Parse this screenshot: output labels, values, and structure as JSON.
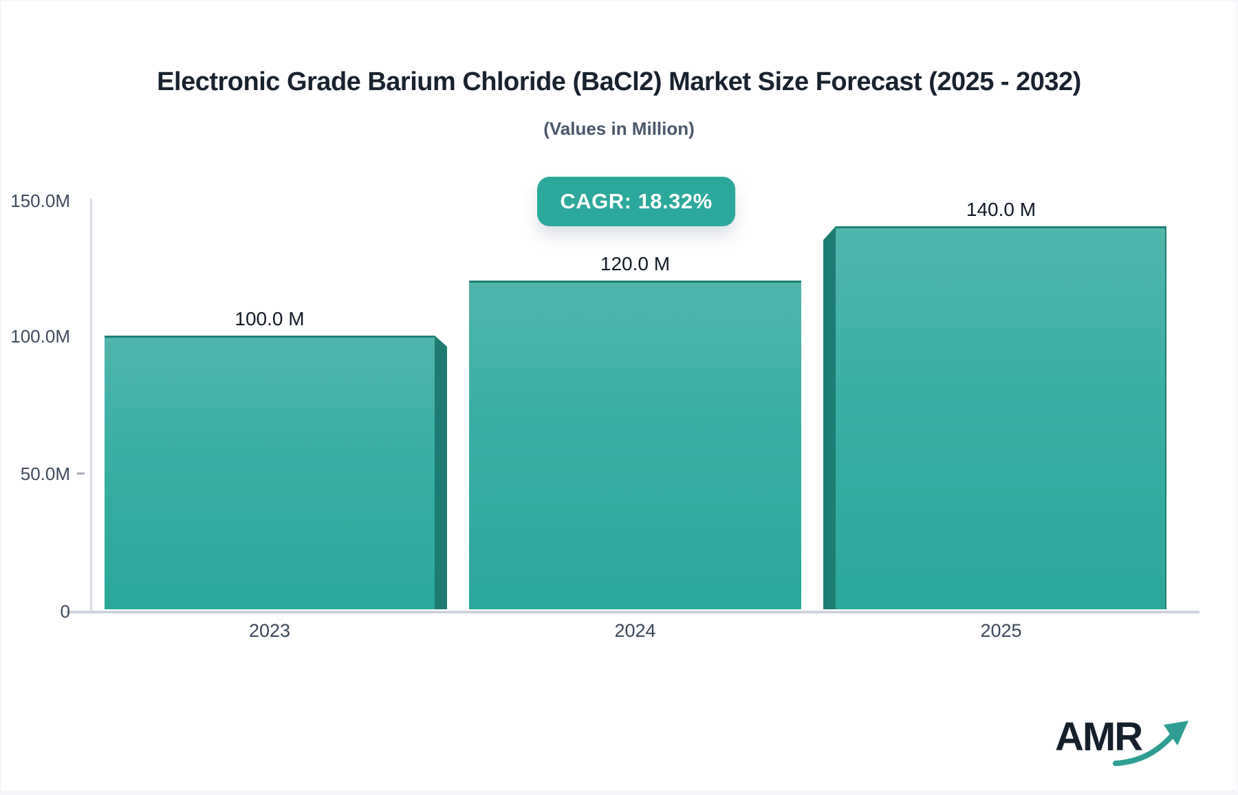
{
  "header": {
    "title": "Electronic Grade Barium Chloride (BaCl2) Market Size Forecast (2025 - 2032)",
    "subtitle": "(Values in Million)"
  },
  "cagr_badge": {
    "label": "CAGR: 18.32%",
    "color": "#2ca89c"
  },
  "chart_data": {
    "type": "bar",
    "title": "Electronic Grade Barium Chloride (BaCl2) Market Size Forecast (2025 - 2032)",
    "subtitle": "(Values in Million)",
    "unit": "Million",
    "categories": [
      "2023",
      "2024",
      "2025"
    ],
    "values": [
      100.0,
      120.0,
      140.0
    ],
    "value_labels": [
      "100.0 M",
      "120.0 M",
      "140.0 M"
    ],
    "cagr": "18.32%",
    "xlabel": "",
    "ylabel": "",
    "ylim": [
      0,
      150
    ],
    "y_tick_labels": [
      "150.0M",
      "100.0M",
      "50.0M",
      "0"
    ],
    "grid": false,
    "legend": "none",
    "bar_color_top": "#50b5ab",
    "bar_color_bottom": "#2ba89a",
    "bar_edge_color": "#1e7c72"
  },
  "logo": {
    "text": "AMR",
    "arrow_icon": "growth-arrow-icon",
    "arrow_color": "#2e9d93"
  },
  "colors": {
    "accent_teal": "#2ca89c",
    "title_text": "#19222f",
    "subtitle_text": "#49576a",
    "axis_text": "#3e4a5c",
    "axis_line": "#ced3db",
    "background": "#ffffff"
  }
}
